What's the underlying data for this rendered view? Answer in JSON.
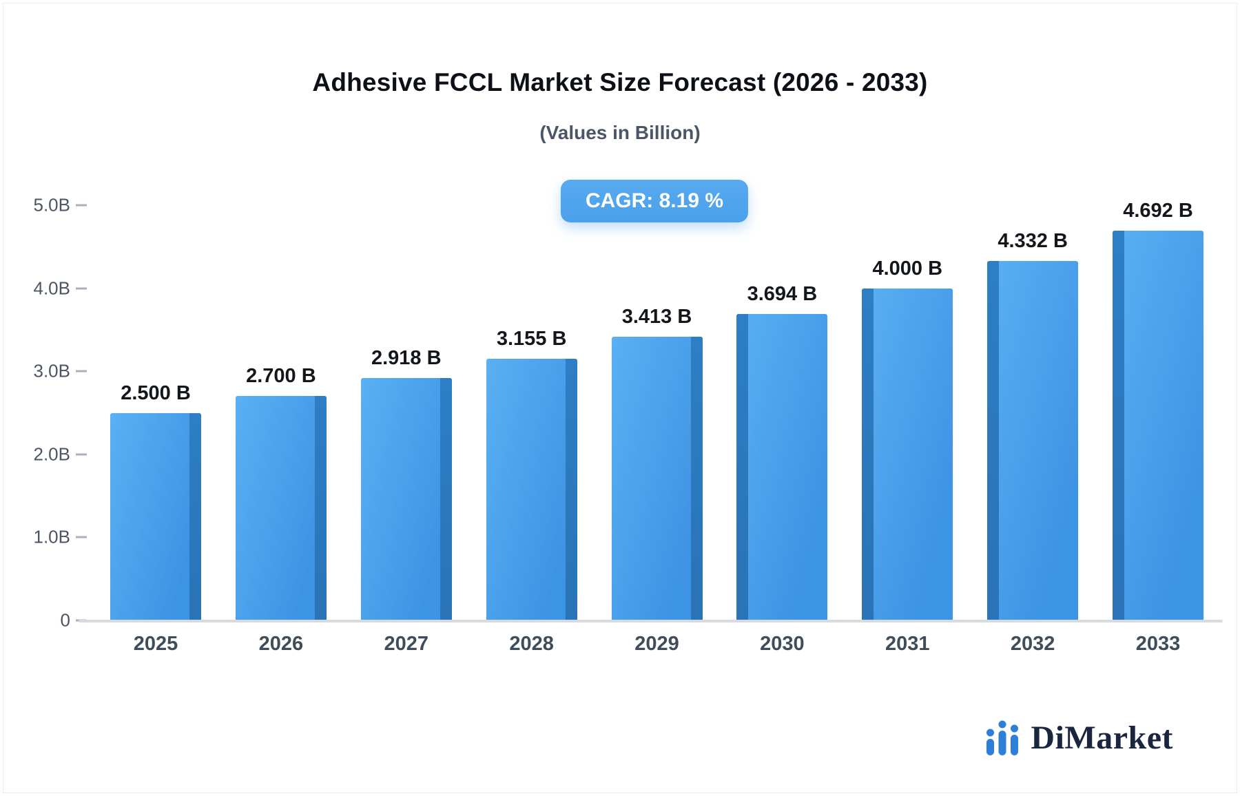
{
  "header": {
    "title": "Adhesive FCCL Market Size Forecast (2026 - 2033)",
    "subtitle": "(Values in Billion)",
    "cagr_badge": "CAGR: 8.19 %"
  },
  "branding": {
    "logo_text": "DiMarket",
    "logo_icon": "bar-chart-icon"
  },
  "colors": {
    "title_text": "#0d1117",
    "subtitle_text": "#4a5568",
    "badge_bg": "#4aa0ea",
    "bar_front_light": "#5bb0f2",
    "bar_front_dark": "#3e94e4",
    "bar_side": "#2d7ec5",
    "axis_line": "#d7dbe0",
    "value_label": "#13171c",
    "year_label": "#3f4c5a",
    "logo_text_color": "#1a2640"
  },
  "chart_data": {
    "type": "bar",
    "title": "Adhesive FCCL Market Size Forecast (2026 - 2033)",
    "subtitle": "(Values in Billion)",
    "cagr": "8.19 %",
    "categories": [
      "2025",
      "2026",
      "2027",
      "2028",
      "2029",
      "2030",
      "2031",
      "2032",
      "2033"
    ],
    "values": [
      2.5,
      2.7,
      2.918,
      3.155,
      3.413,
      3.694,
      4.0,
      4.332,
      4.692
    ],
    "bar_labels": [
      "2.500 B",
      "2.700 B",
      "2.918 B",
      "3.155 B",
      "3.413 B",
      "3.694 B",
      "4.000 B",
      "4.332 B",
      "4.692 B"
    ],
    "xlabel": "",
    "ylabel": "",
    "ylim": [
      0,
      5
    ],
    "yticks": [
      {
        "value": 0,
        "label": "0"
      },
      {
        "value": 1,
        "label": "1.0B"
      },
      {
        "value": 2,
        "label": "2.0B"
      },
      {
        "value": 3,
        "label": "3.0B"
      },
      {
        "value": 4,
        "label": "4.0B"
      },
      {
        "value": 5,
        "label": "5.0B"
      }
    ],
    "grid": false,
    "legend": false
  }
}
